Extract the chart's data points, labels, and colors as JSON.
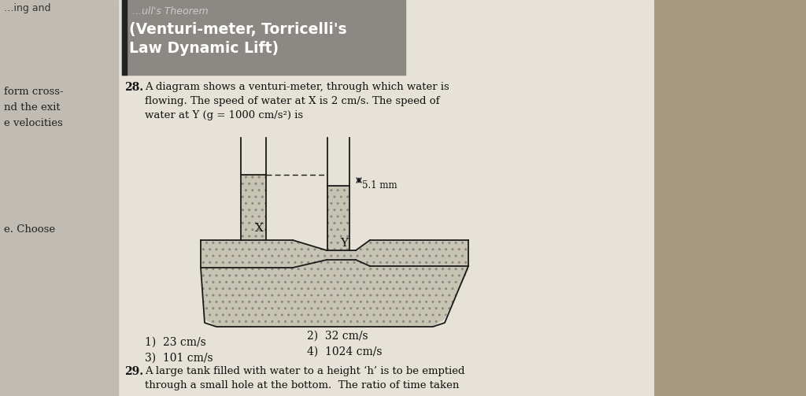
{
  "bg_outer": "#b8b4ac",
  "bg_page": "#e8e4dc",
  "bg_left": "#c0bcb4",
  "title_box_color": "#888884",
  "title_line1": "(Venturi-meter, Torricelli's",
  "title_line2": "Law Dynamic Lift)",
  "title_top_partial": "...ull's Theorem",
  "q28_num": "28.",
  "q28_text_l1": "A diagram shows a venturi-meter, through which water is",
  "q28_text_l2": "flowing. The speed of water at X is 2 cm/s. The speed of",
  "q28_text_l3": "water at Y (g = 1000 cm/s²) is",
  "opt1": "1)  23 cm/s",
  "opt2": "2)  32 cm/s",
  "opt3": "3)  101 cm/s",
  "opt4": "4)  1024 cm/s",
  "q29_num": "29.",
  "q29_text_l1": "A large tank filled with water to a height ‘h’ is to be emptied",
  "q29_text_l2": "through a small hole at the bottom.  The ratio of time taken",
  "side_l1": "form cross-",
  "side_l2": "nd the exit",
  "side_l3": "e velocities",
  "side_l4": "e. Choose",
  "ann_51mm": "5.1 mm",
  "label_X": "X",
  "label_Y": "Y",
  "top_partial": "…ing and",
  "dot_color": "#c8c4b4",
  "line_color": "#1a1a1a",
  "page_color": "#e6e2d8"
}
